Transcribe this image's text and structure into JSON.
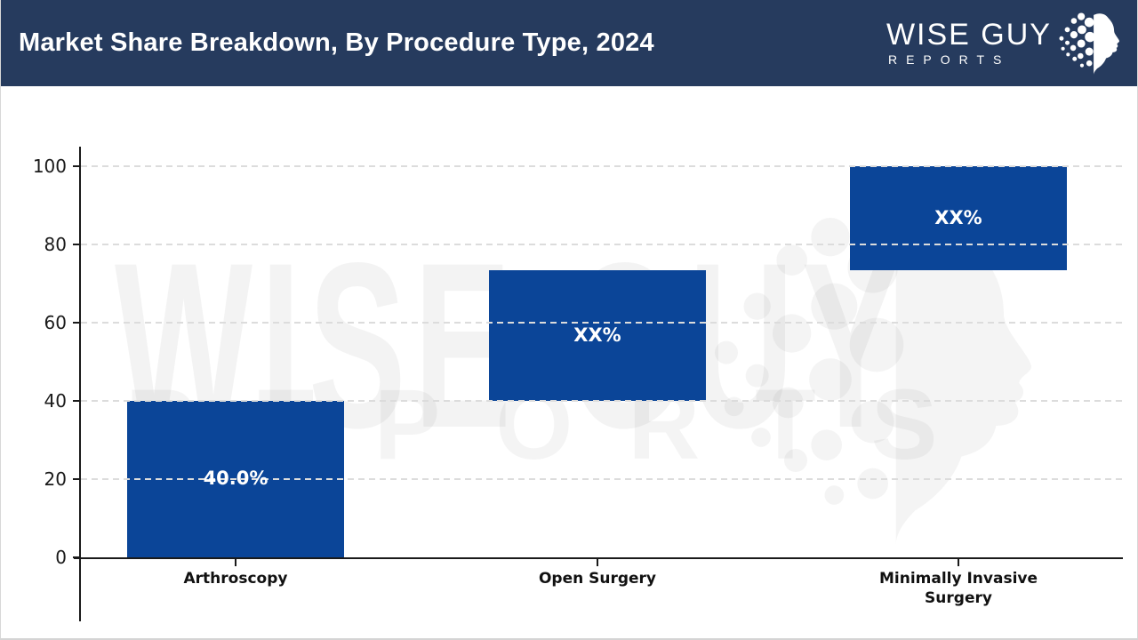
{
  "header": {
    "title": "Market Share Breakdown, By Procedure Type, 2024",
    "logo": {
      "wordmark": "WISE GUY",
      "subtitle": "REPORTS"
    }
  },
  "watermark": {
    "wordmark": "WISE GUY",
    "subtitle": "REPORTS"
  },
  "chart_data": {
    "type": "bar",
    "subtype": "floating-waterfall",
    "title": "Market Share Breakdown, By Procedure Type, 2024",
    "categories": [
      "Arthroscopy",
      "Open Surgery",
      "Minimally Invasive Surgery"
    ],
    "bars": [
      {
        "category": "Arthroscopy",
        "start": 0,
        "end": 40,
        "label": "40.0%"
      },
      {
        "category": "Open Surgery",
        "start": 40,
        "end": 73.3,
        "label": "XX%"
      },
      {
        "category": "Minimally Invasive Surgery",
        "start": 73.3,
        "end": 100,
        "label": "XX%"
      }
    ],
    "xlabel": "",
    "ylabel": "",
    "ylim": [
      0,
      100
    ],
    "yticks": [
      0,
      20,
      40,
      60,
      80,
      100
    ],
    "grid": "horizontal-dashed",
    "legend": "none",
    "bar_color": "#0b4598",
    "bar_label_color": "#ffffff",
    "background_color": "#ffffff",
    "header_color": "#263b5e"
  }
}
